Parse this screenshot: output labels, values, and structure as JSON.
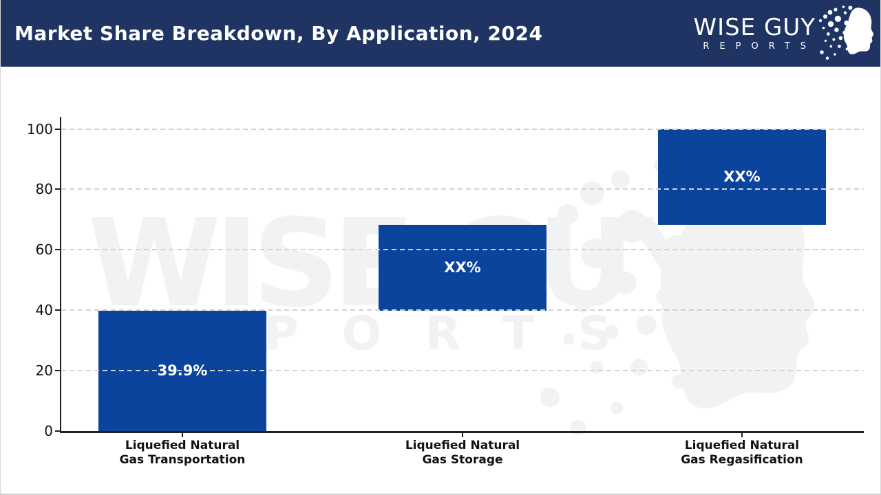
{
  "header": {
    "title": "Market Share Breakdown, By Application, 2024",
    "bg_color": "#1f3463",
    "logo_line1": "WISE GUY",
    "logo_line2": "REPORTS"
  },
  "watermark": {
    "line1": "WISE GUY",
    "line2": "REPORTS"
  },
  "chart_data": {
    "type": "bar",
    "subtype": "waterfall",
    "title": "Market Share Breakdown, By Application, 2024",
    "categories": [
      {
        "line1": "Liquefied Natural",
        "line2": "Gas Transportation"
      },
      {
        "line1": "Liquefied Natural",
        "line2": "Gas Storage"
      },
      {
        "line1": "Liquefied Natural",
        "line2": "Gas Regasification"
      }
    ],
    "segments": [
      {
        "start": 0,
        "end": 39.9,
        "label": "39.9%"
      },
      {
        "start": 39.9,
        "end": 68.2,
        "label": "XX%"
      },
      {
        "start": 68.2,
        "end": 100,
        "label": "XX%"
      }
    ],
    "yticks": [
      0,
      20,
      40,
      60,
      80,
      100
    ],
    "ylim": [
      0,
      104
    ],
    "xlabel": "",
    "ylabel": "",
    "bar_color": "#0a449c",
    "grid": {
      "horizontal": true,
      "style": "dashed",
      "color": "#d2d2d2"
    },
    "legend": "none"
  }
}
